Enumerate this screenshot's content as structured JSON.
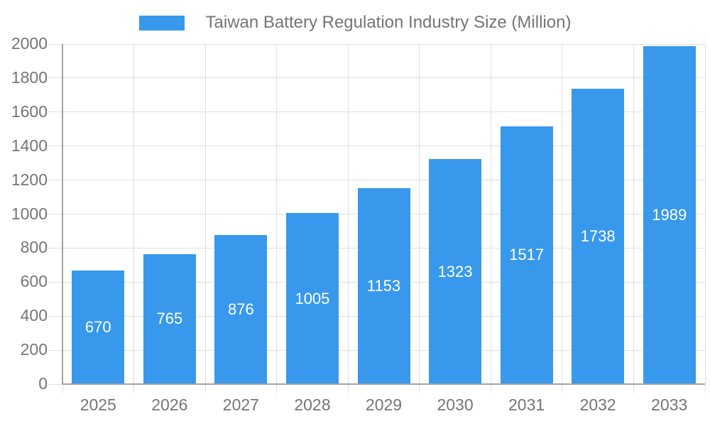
{
  "chart_data": {
    "type": "bar",
    "title": "Taiwan Battery Regulation Industry Size (Million)",
    "categories": [
      "2025",
      "2026",
      "2027",
      "2028",
      "2029",
      "2030",
      "2031",
      "2032",
      "2033"
    ],
    "values": [
      670,
      765,
      876,
      1005,
      1153,
      1323,
      1517,
      1738,
      1989
    ],
    "xlabel": "",
    "ylabel": "",
    "ylim": [
      0,
      2000
    ],
    "y_ticks": [
      0,
      200,
      400,
      600,
      800,
      1000,
      1200,
      1400,
      1600,
      1800,
      2000
    ],
    "grid": true,
    "legend_position": "top-center",
    "value_labels_inside_bars": true,
    "colors": {
      "bar": "#3899ec",
      "value_label": "#ffffff",
      "axis_text": "#757575",
      "grid": "#e0e0e0",
      "axis_line": "#a3a3a3"
    }
  }
}
